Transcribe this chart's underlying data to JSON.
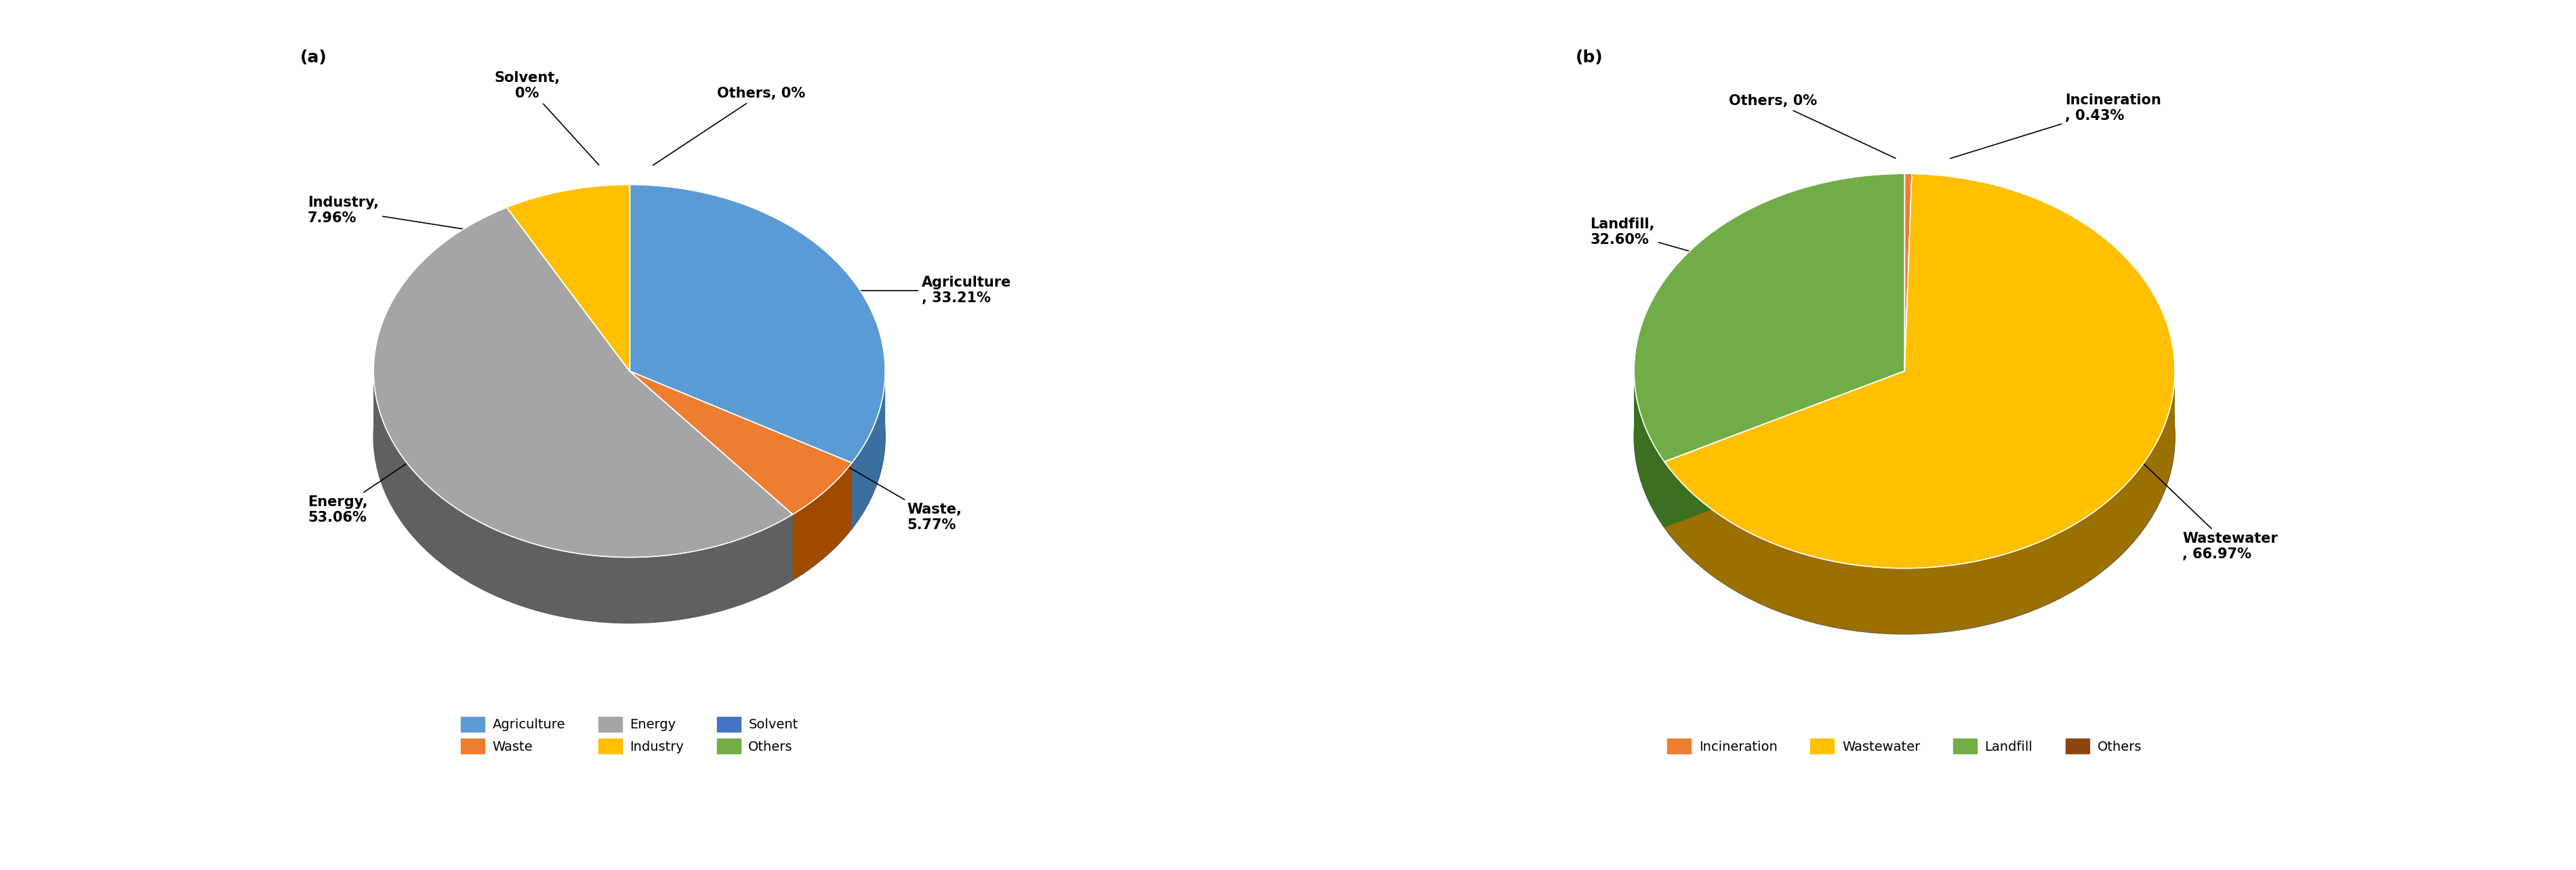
{
  "chart_a": {
    "labels": [
      "Agriculture",
      "Waste",
      "Energy",
      "Industry",
      "Solvent",
      "Others"
    ],
    "values": [
      33.21,
      5.77,
      53.06,
      7.96,
      0.0,
      0.0
    ],
    "colors": [
      "#5B9BD5",
      "#ED7D31",
      "#A5A5A5",
      "#FFC000",
      "#4472C4",
      "#70AD47"
    ],
    "side_colors": [
      "#3A6FA0",
      "#A04A00",
      "#606060",
      "#9A7000",
      "#2A4FA0",
      "#3A7020"
    ],
    "title": "(a)",
    "startangle": 90,
    "clockwise": true
  },
  "chart_b": {
    "labels": [
      "Incineration",
      "Wastewater",
      "Landfill",
      "Others"
    ],
    "values": [
      0.43,
      66.97,
      32.6,
      0.0
    ],
    "colors": [
      "#ED7D31",
      "#FFC000",
      "#70AD47",
      "#8B4513"
    ],
    "side_colors": [
      "#A04A00",
      "#9A7000",
      "#3A7020",
      "#4A2000"
    ],
    "title": "(b)",
    "startangle": 90,
    "clockwise": true
  },
  "legend_a": {
    "labels": [
      "Agriculture",
      "Waste",
      "Energy",
      "Industry",
      "Solvent",
      "Others"
    ],
    "colors": [
      "#5B9BD5",
      "#ED7D31",
      "#A5A5A5",
      "#FFC000",
      "#4472C4",
      "#70AD47"
    ]
  },
  "legend_b": {
    "labels": [
      "Incineration",
      "Wastewater",
      "Landfill",
      "Others"
    ],
    "colors": [
      "#ED7D31",
      "#FFC000",
      "#70AD47",
      "#8B4513"
    ]
  },
  "bg_color": "#FFFFFF",
  "font_size_labels": 15,
  "font_size_legend": 14,
  "font_size_title": 18
}
